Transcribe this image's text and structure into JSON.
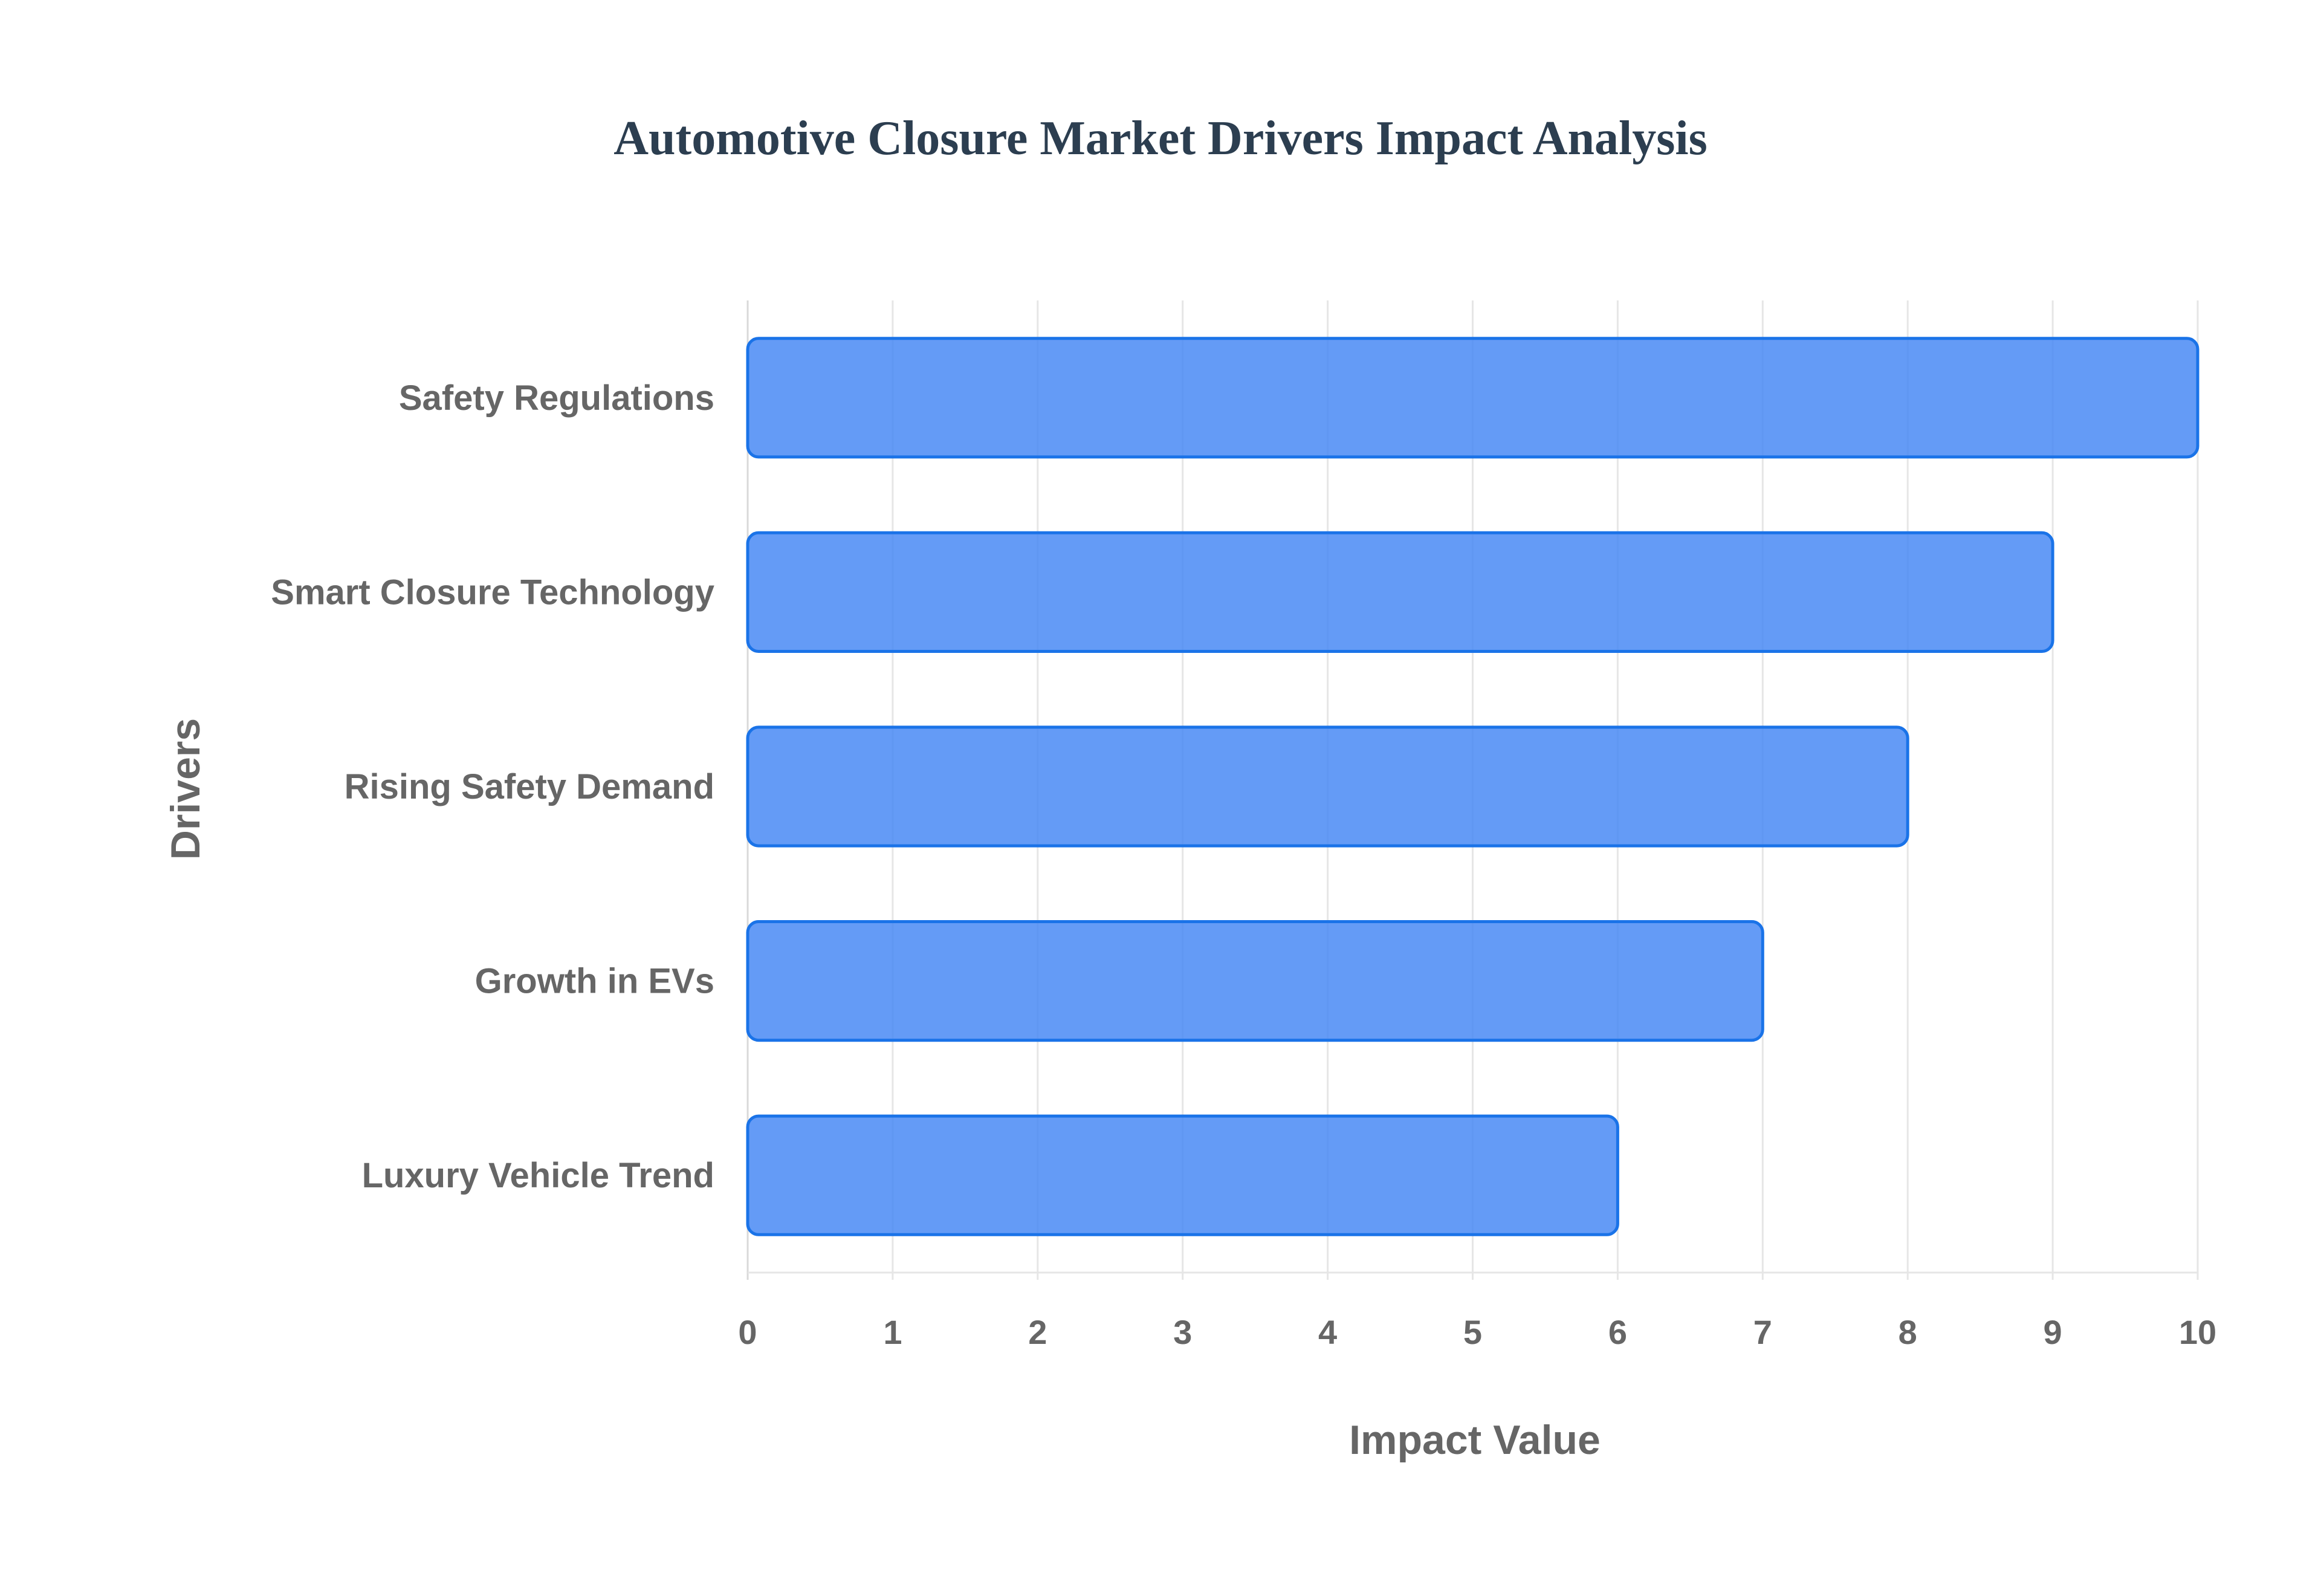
{
  "colors": {
    "bar_fill": "#4285f4",
    "bar_stroke": "#1a73e8",
    "title": "#2c3e50",
    "text": "#666666",
    "grid": "#e6e6e6"
  },
  "chart_data": {
    "type": "bar",
    "orientation": "horizontal",
    "title": "Automotive Closure Market Drivers Impact Analysis",
    "xlabel": "Impact Value",
    "ylabel": "Drivers",
    "categories": [
      "Safety Regulations",
      "Smart Closure Technology",
      "Rising Safety Demand",
      "Growth in EVs",
      "Luxury Vehicle Trend"
    ],
    "values": [
      10,
      9,
      8,
      7,
      6
    ],
    "xlim": [
      0,
      10
    ],
    "xticks": [
      "0",
      "1",
      "2",
      "3",
      "4",
      "5",
      "6",
      "7",
      "8",
      "9",
      "10"
    ],
    "grid": true,
    "legend": "none"
  }
}
